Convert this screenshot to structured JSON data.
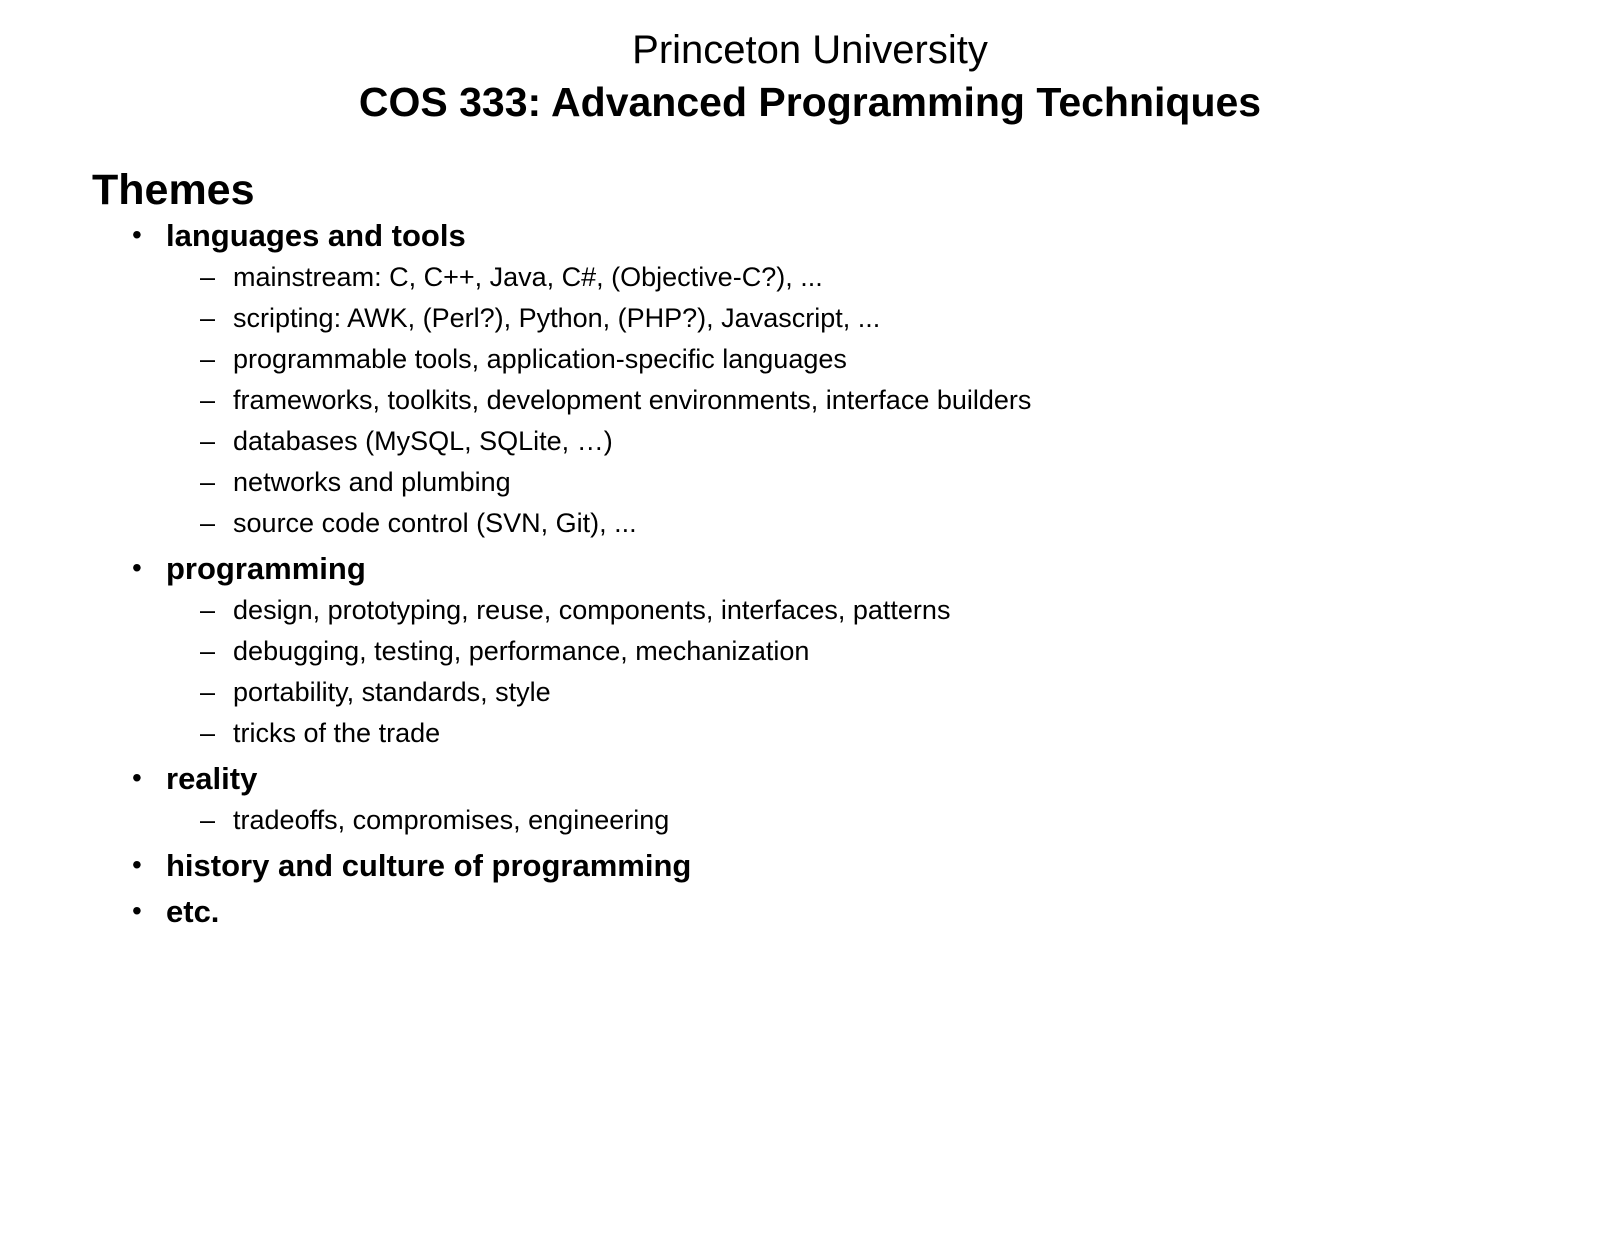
{
  "header": {
    "university": "Princeton University",
    "course_title": "COS 333: Advanced Programming Techniques"
  },
  "section_heading": "Themes",
  "themes": [
    {
      "label": "languages and tools",
      "items": [
        "mainstream: C, C++, Java, C#, (Objective-C?), ...",
        "scripting: AWK, (Perl?), Python, (PHP?), Javascript, ...",
        "programmable tools, application-specific languages",
        "frameworks, toolkits, development environments, interface builders",
        "databases (MySQL, SQLite, …)",
        "networks and plumbing",
        "source code control (SVN, Git), ..."
      ]
    },
    {
      "label": "programming",
      "items": [
        "design, prototyping, reuse, components, interfaces, patterns",
        "debugging, testing, performance, mechanization",
        "portability, standards, style",
        "tricks of the trade"
      ]
    },
    {
      "label": "reality",
      "items": [
        "tradeoffs, compromises, engineering"
      ]
    },
    {
      "label": "history and culture of programming",
      "items": []
    },
    {
      "label": "etc.",
      "items": []
    }
  ],
  "styling": {
    "background_color": "#ffffff",
    "text_color": "#000000",
    "font_family": "Comic Sans MS",
    "university_fontsize": 40,
    "course_title_fontsize": 41,
    "section_heading_fontsize": 43,
    "bullet_label_fontsize": 31,
    "dash_text_fontsize": 27,
    "bullet_marker": "•",
    "dash_marker": "–"
  }
}
